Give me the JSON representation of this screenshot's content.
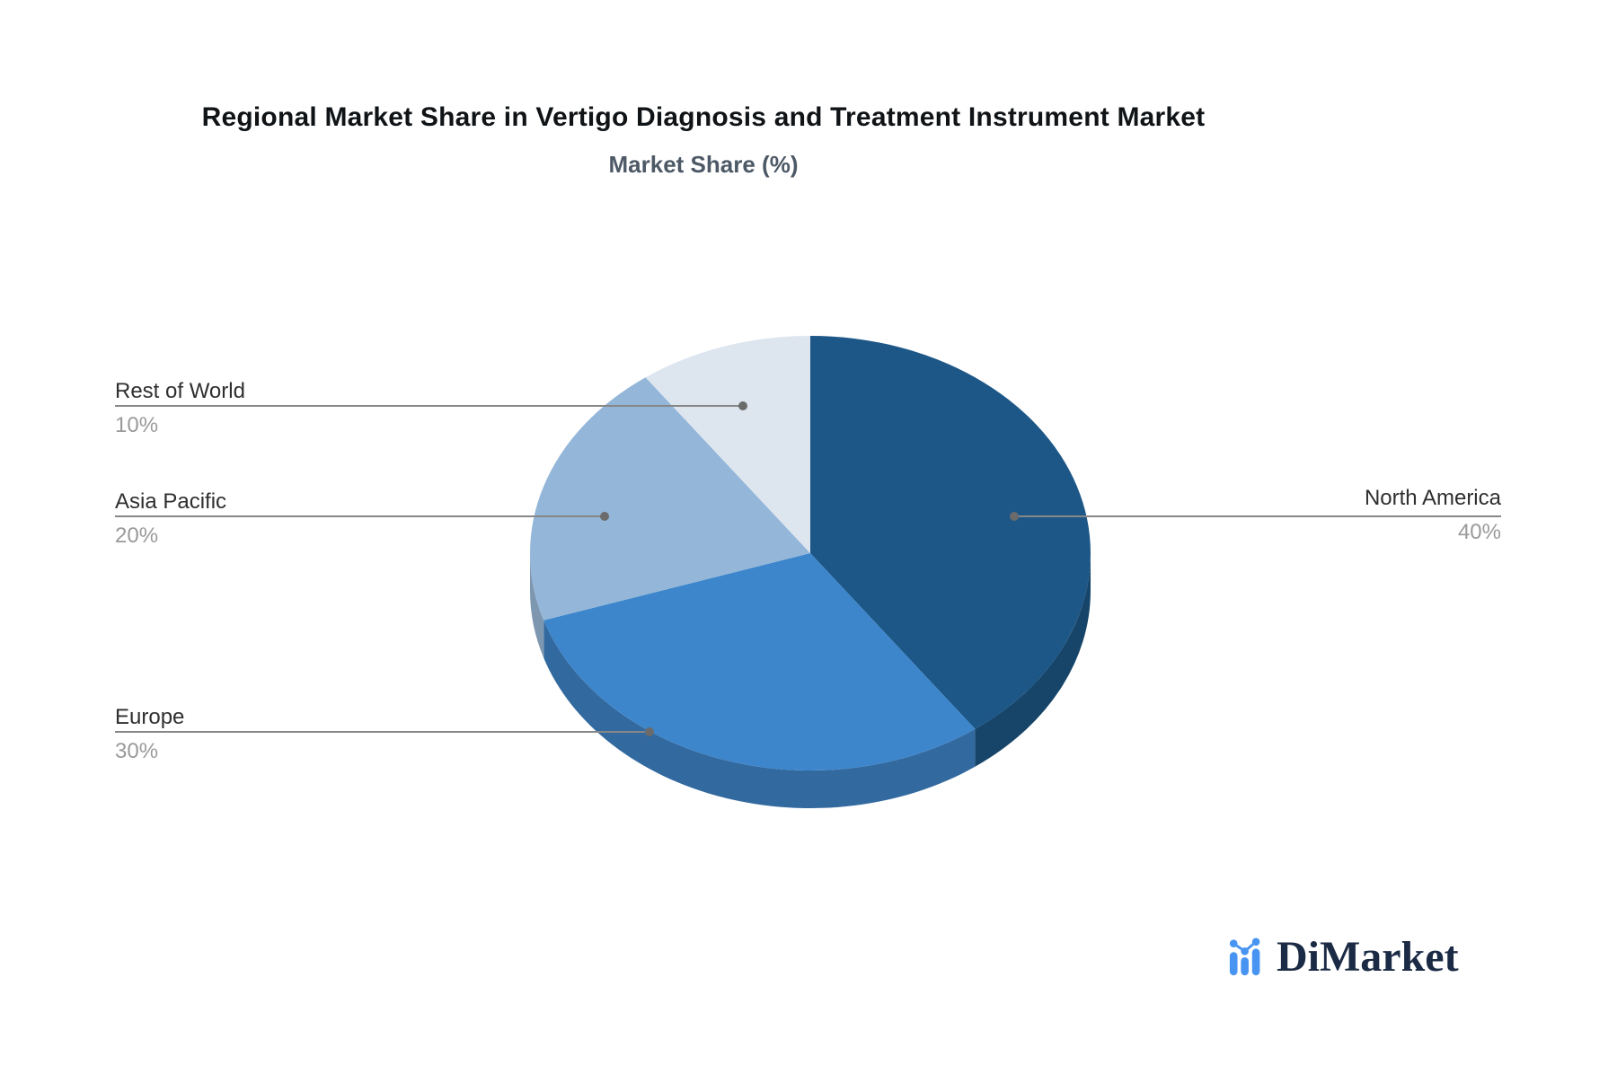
{
  "chart_data": {
    "type": "pie",
    "title": "Regional Market Share in Vertigo Diagnosis and Treatment Instrument Market",
    "subtitle": "Market Share (%)",
    "effect": "3d",
    "start_angle_deg": 0,
    "clockwise": true,
    "legend_position": "callout-labels",
    "slices": [
      {
        "name": "North America",
        "value": 40,
        "label": "40%",
        "color": "#1d5787",
        "side_color": "#164569"
      },
      {
        "name": "Europe",
        "value": 30,
        "label": "30%",
        "color": "#3d86cb",
        "side_color": "#32699f"
      },
      {
        "name": "Asia Pacific",
        "value": 20,
        "label": "20%",
        "color": "#93b6d9",
        "side_color": "#7d97b0"
      },
      {
        "name": "Rest of World",
        "value": 10,
        "label": "10%",
        "color": "#dde5ef",
        "side_color": "#b9c6d6"
      }
    ],
    "colors": {
      "leader_line": "#878787",
      "leader_dot": "#6b6b6b",
      "label_text": "#2f2f2f",
      "value_text": "#9a9a9a",
      "title_text": "#101417",
      "subtitle_text": "#4d5966"
    }
  },
  "branding": {
    "logo_text": "DiMarket",
    "logo_color": "#1b2b45",
    "icon_color": "#4894f2"
  }
}
